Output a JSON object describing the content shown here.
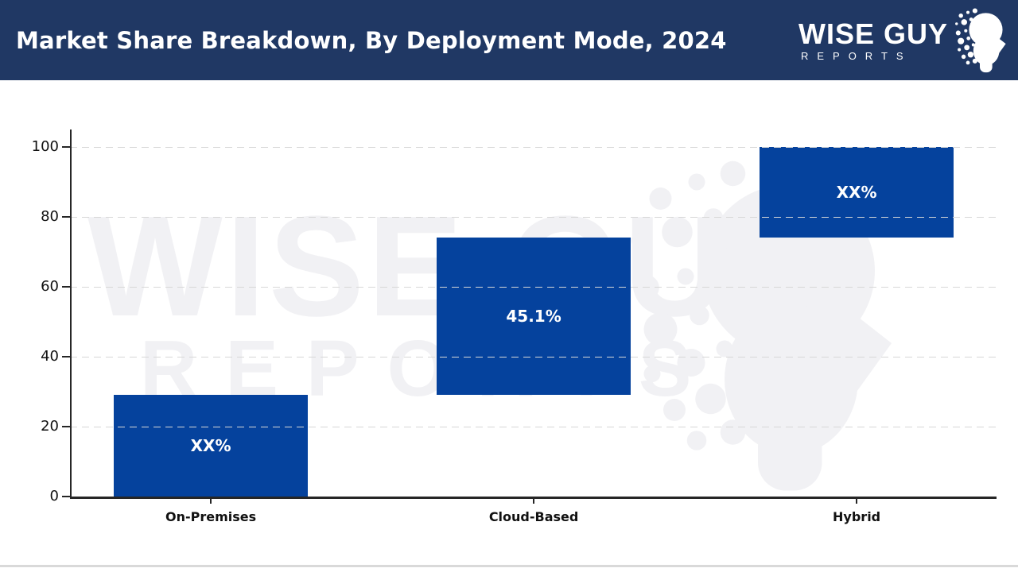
{
  "header": {
    "title": "Market Share Breakdown, By Deployment Mode, 2024",
    "bg_color": "#203864",
    "logo": {
      "wordmark": "WISE GUY",
      "subtext": "REPORTS",
      "face_icon": "dotted-face-profile"
    }
  },
  "watermark": {
    "wordmark": "WISE GUY",
    "subtext": "REPORTS",
    "face_icon": "dotted-face-profile"
  },
  "chart_data": {
    "type": "bar",
    "subtype": "floating-waterfall",
    "title": "Market Share Breakdown, By Deployment Mode, 2024",
    "categories": [
      "On-Premises",
      "Cloud-Based",
      "Hybrid"
    ],
    "segments": [
      {
        "category": "On-Premises",
        "base": 0,
        "value": 29,
        "label": "XX%"
      },
      {
        "category": "Cloud-Based",
        "base": 29,
        "value": 45.1,
        "label": "45.1%"
      },
      {
        "category": "Hybrid",
        "base": 74.1,
        "value": 25.9,
        "label": "XX%"
      }
    ],
    "yticks": [
      0,
      20,
      40,
      60,
      80,
      100
    ],
    "ylim": [
      0,
      105
    ],
    "xlabel": "",
    "ylabel": "",
    "legend": false,
    "grid": true,
    "gridline_style": "dashed",
    "gridline_color": "#d7d7d7",
    "axis_color": "#262626",
    "bar_color": "#05429d",
    "bar_label_color": "#ffffff"
  }
}
